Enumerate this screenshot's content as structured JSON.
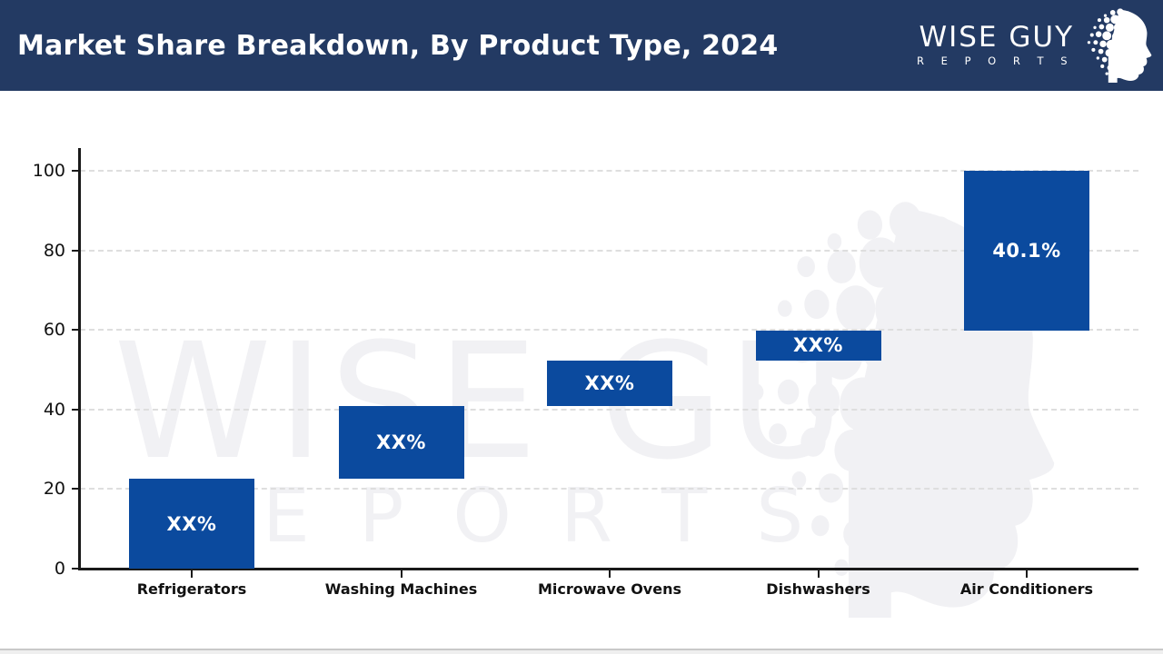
{
  "header": {
    "title": "Market Share Breakdown, By Product Type, 2024",
    "logo": {
      "brand": "WISE GUY",
      "sub": "R E P O R T S"
    }
  },
  "watermark": {
    "brand": "WISE GUY",
    "sub": "R E P O R T S"
  },
  "colors": {
    "header_bg": "#233a63",
    "bar_blue": "#0b4a9e",
    "axis": "#1a1a1a",
    "gridline": "#dedede",
    "watermark": "#f1f1f4",
    "bar_label_text": "#ffffff"
  },
  "chart_data": {
    "type": "bar",
    "subtype": "waterfall",
    "title": "Market Share Breakdown, By Product Type, 2024",
    "categories": [
      "Refrigerators",
      "Washing Machines",
      "Microwave Ovens",
      "Dishwashers",
      "Air Conditioners"
    ],
    "segments": [
      {
        "category": "Refrigerators",
        "start": 0,
        "end": 22.5,
        "label": "XX%"
      },
      {
        "category": "Washing Machines",
        "start": 22.5,
        "end": 40.9,
        "label": "XX%"
      },
      {
        "category": "Microwave Ovens",
        "start": 40.9,
        "end": 52.3,
        "label": "XX%"
      },
      {
        "category": "Dishwashers",
        "start": 52.3,
        "end": 59.9,
        "label": "XX%"
      },
      {
        "category": "Air Conditioners",
        "start": 59.9,
        "end": 100,
        "label": "40.1%"
      }
    ],
    "y_ticks": [
      0,
      20,
      40,
      60,
      80,
      100
    ],
    "ylim": [
      0,
      100
    ],
    "xlabel": "",
    "ylabel": "",
    "grid": "horizontal-dashed",
    "legend": "none"
  }
}
